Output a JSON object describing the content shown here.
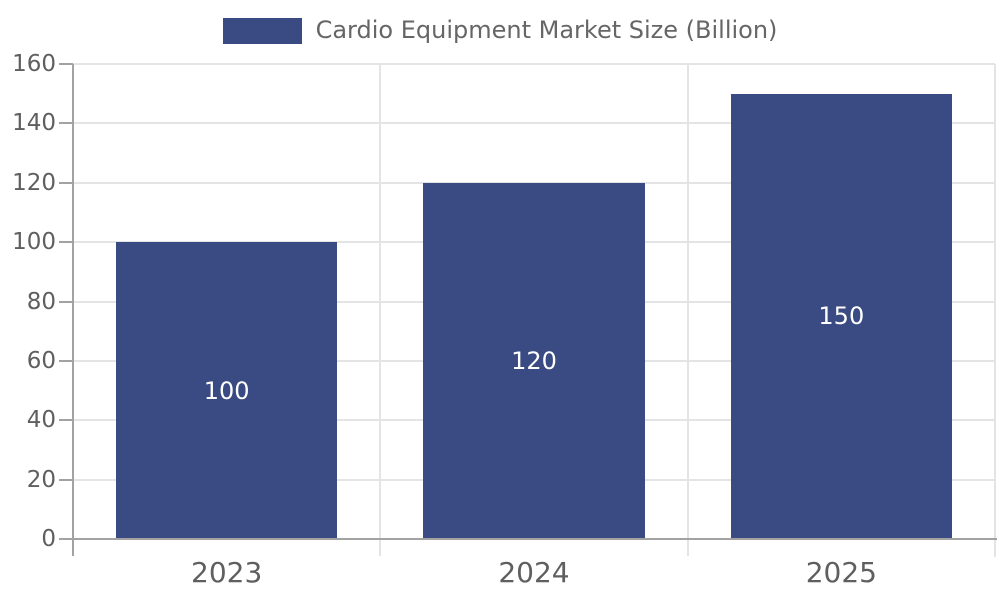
{
  "chart_data": {
    "type": "bar",
    "title": "Cardio Equipment Market Size (Billion)",
    "legend": {
      "label": "Cardio Equipment Market Size (Billion)",
      "position": "top-center"
    },
    "categories": [
      "2023",
      "2024",
      "2025"
    ],
    "series": [
      {
        "name": "Cardio Equipment Market Size (Billion)",
        "values": [
          100,
          120,
          150
        ]
      }
    ],
    "value_labels": [
      "100",
      "120",
      "150"
    ],
    "xlabel": "",
    "ylabel": "",
    "ylim": [
      0,
      160
    ],
    "yticks": [
      0,
      20,
      40,
      60,
      80,
      100,
      120,
      140,
      160
    ],
    "grid": {
      "horizontal": true,
      "vertical_category_boundaries": true
    },
    "layout_hints": {
      "bar_width_fraction_of_slot": 0.72,
      "value_label_position": "inside-center"
    },
    "colors": {
      "bar": "#3a4a82",
      "grid": "#e4e4e4",
      "axis": "#a2a2a2",
      "tick_label": "#5f5f5f",
      "legend_text": "#666666",
      "value_label": "#ffffff",
      "background": "#ffffff"
    }
  }
}
